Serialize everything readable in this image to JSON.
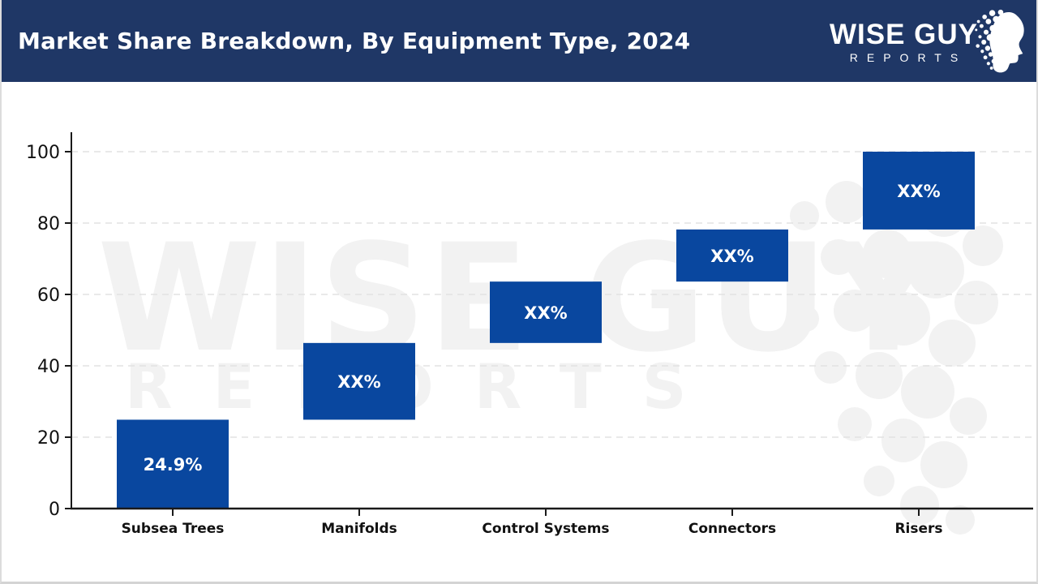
{
  "header": {
    "title": "Market Share Breakdown, By Equipment Type, 2024",
    "logo": {
      "line1": "WISE GUY",
      "line2": "REPORTS"
    }
  },
  "watermark": {
    "line1": "WISE GUY",
    "line2": "REPORTS"
  },
  "chart_data": {
    "type": "bar",
    "subtype": "waterfall",
    "title": "Market Share Breakdown, By Equipment Type, 2024",
    "xlabel": "",
    "ylabel": "",
    "categories": [
      "Subsea Trees",
      "Manifolds",
      "Control Systems",
      "Connectors",
      "Risers"
    ],
    "segments": [
      {
        "category": "Subsea Trees",
        "start": 0,
        "end": 24.9,
        "label": "24.9%"
      },
      {
        "category": "Manifolds",
        "start": 24.9,
        "end": 46.4,
        "label": "XX%"
      },
      {
        "category": "Control Systems",
        "start": 46.4,
        "end": 63.6,
        "label": "XX%"
      },
      {
        "category": "Connectors",
        "start": 63.6,
        "end": 78.2,
        "label": "XX%"
      },
      {
        "category": "Risers",
        "start": 78.2,
        "end": 100,
        "label": "XX%"
      }
    ],
    "yticks": [
      0,
      20,
      40,
      60,
      80,
      100
    ],
    "ylim": [
      0,
      105
    ],
    "grid": "horizontal-dashed",
    "legend": "none",
    "bar_color": "#09479f",
    "bar_label_color": "#ffffff"
  },
  "colors": {
    "header_bg": "#1f3766",
    "bar": "#09479f",
    "grid": "#e2e2e2",
    "axis": "#1a1a1a",
    "watermark": "#f2f2f2"
  }
}
